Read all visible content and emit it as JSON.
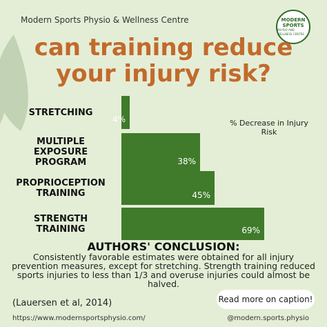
{
  "header": {
    "clinic_name": "Modern Sports Physio & Wellness Centre",
    "logo_line1": "MODERN",
    "logo_line2": "SPORTS",
    "logo_line3": "PHYSIO AND WELLNESS CENTRE"
  },
  "title_line1": "can training reduce",
  "title_line2": "your injury risk?",
  "legend_text": "% Decrease in Injury Risk",
  "colors": {
    "bar": "#3f7b2a",
    "title": "#c26a2c",
    "background": "#e4eed6"
  },
  "chart_data": {
    "type": "bar",
    "orientation": "horizontal",
    "categories": [
      [
        "STRETCHING"
      ],
      [
        "MULTIPLE",
        "EXPOSURE",
        "PROGRAM"
      ],
      [
        "PROPRIOCEPTION",
        "TRAINING"
      ],
      [
        "STRENGTH",
        "TRAINING"
      ]
    ],
    "values": [
      4,
      38,
      45,
      69
    ],
    "value_labels": [
      "4%",
      "38%",
      "45%",
      "69%"
    ],
    "xlim": [
      0,
      100
    ]
  },
  "conclusion": {
    "title": "AUTHORS' CONCLUSION:",
    "body": "Consistently favorable estimates were obtained for all injury prevention measures, except for stretching. Strength training reduced sports injuries to less than 1/3 and overuse injuries could almost be halved."
  },
  "citation": "(Lauersen et al, 2014)",
  "caption_button": "Read more on caption!",
  "footer": {
    "website": "https://www.modernsportsphysio.com/",
    "handle": "@modern.sports.physio"
  }
}
